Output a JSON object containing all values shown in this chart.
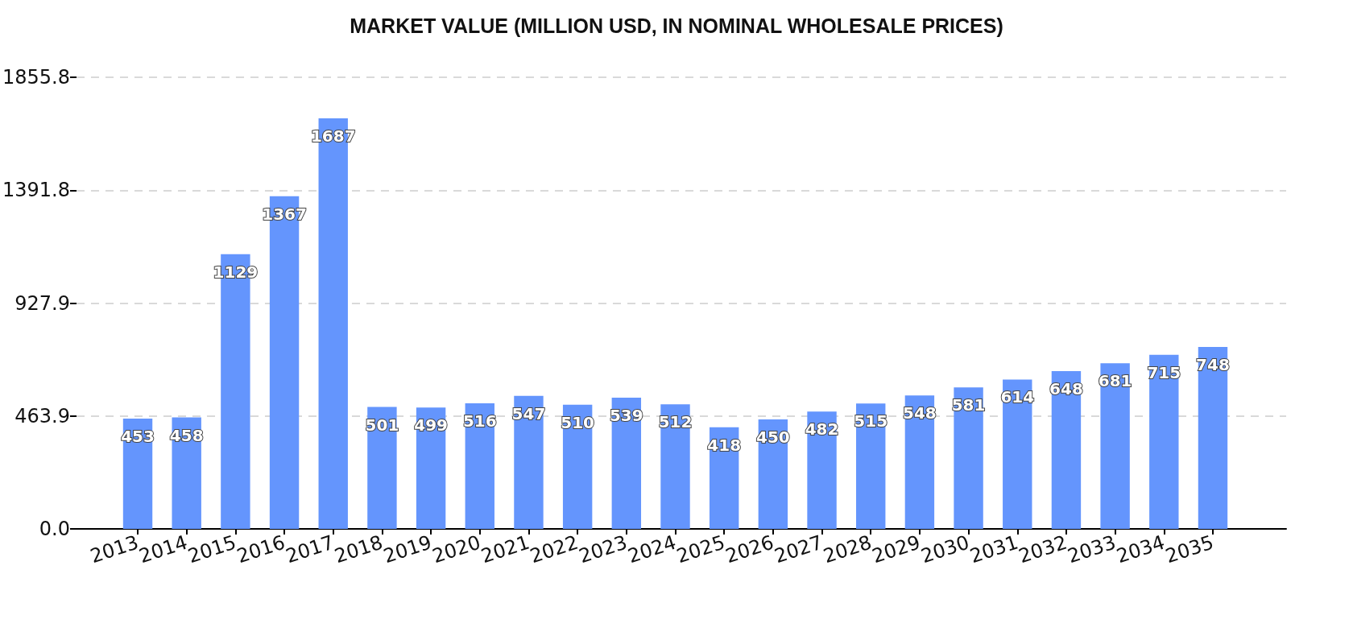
{
  "chart_data": {
    "type": "bar",
    "title": "MARKET VALUE (MILLION USD, IN NOMINAL WHOLESALE PRICES)",
    "categories": [
      "2013",
      "2014",
      "2015",
      "2016",
      "2017",
      "2018",
      "2019",
      "2020",
      "2021",
      "2022",
      "2023",
      "2024",
      "2025",
      "2026",
      "2027",
      "2028",
      "2029",
      "2030",
      "2031",
      "2032",
      "2033",
      "2034",
      "2035"
    ],
    "values": [
      453,
      458,
      1129,
      1367,
      1687,
      501,
      499,
      516,
      547,
      510,
      539,
      512,
      418,
      450,
      482,
      515,
      548,
      581,
      614,
      648,
      681,
      715,
      748
    ],
    "color": "#6495fd",
    "ylim": [
      0,
      1855.8
    ],
    "yticks": [
      {
        "value": 0,
        "label": "0.0"
      },
      463.9,
      927.9,
      1391.8,
      1855.8
    ],
    "grid": "y",
    "data_labels": true
  }
}
